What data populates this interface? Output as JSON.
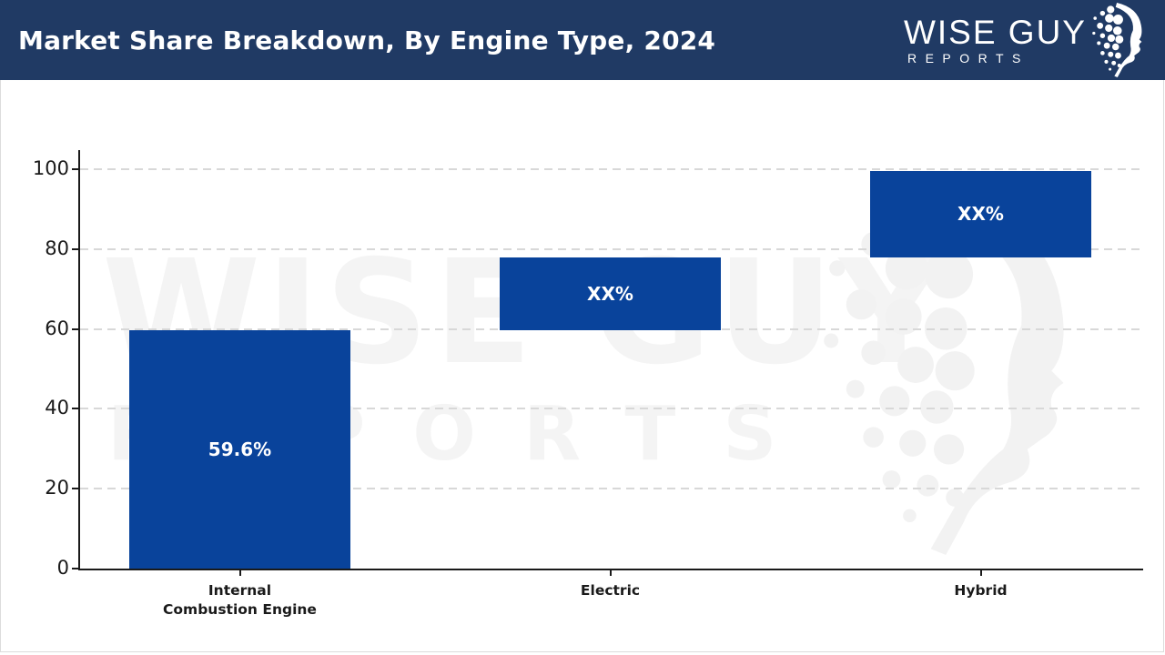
{
  "header": {
    "title": "Market Share Breakdown, By Engine Type, 2024",
    "logo": {
      "line1": "WISE GUY",
      "line2": "REPORTS"
    }
  },
  "watermark": {
    "line1": "WISE GUY",
    "line2": "REPORTS"
  },
  "colors": {
    "header_bg": "#203a64",
    "bar_fill": "#09439b",
    "bar_label_text": "#ffffff",
    "axis": "#1a1a1a",
    "gridline": "#d8d8d8",
    "watermark": "#f4f4f4"
  },
  "chart_data": {
    "type": "bar",
    "subtype": "waterfall",
    "title": "Market Share Breakdown, By Engine Type, 2024",
    "categories": [
      "Internal\nCombustion Engine",
      "Electric",
      "Hybrid"
    ],
    "segments": [
      {
        "category": "Internal Combustion Engine",
        "start": 0,
        "end": 59.6,
        "label": "59.6%"
      },
      {
        "category": "Electric",
        "start": 59.6,
        "end": 77.9,
        "label": "XX%"
      },
      {
        "category": "Hybrid",
        "start": 77.9,
        "end": 99.6,
        "label": "XX%"
      }
    ],
    "yticks": [
      0,
      20,
      40,
      60,
      80,
      100
    ],
    "ylim": [
      0,
      105
    ],
    "xlabel": "",
    "ylabel": "",
    "grid": "horizontal-dashed",
    "legend": "none"
  }
}
